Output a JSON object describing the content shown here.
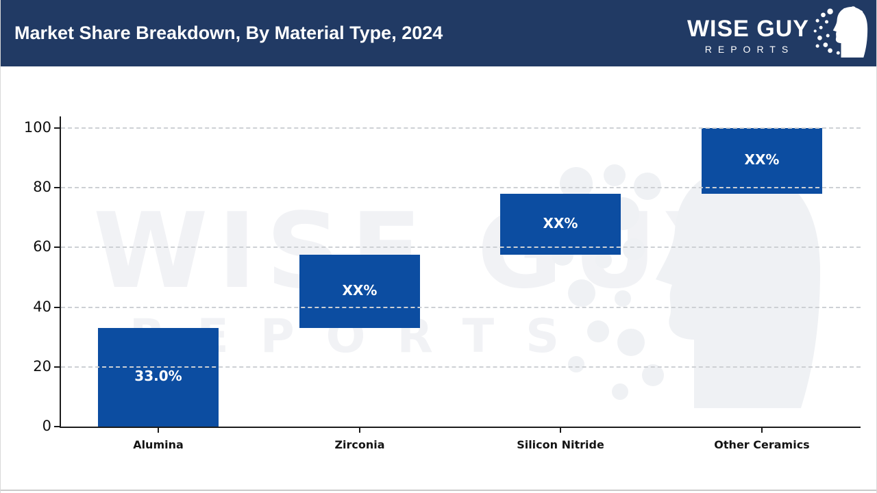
{
  "header": {
    "title": "Market Share Breakdown, By Material Type, 2024",
    "brand": {
      "name": "WISE GUY",
      "subname": "REPORTS"
    }
  },
  "watermark": {
    "line1": "WISE GUY",
    "line2": "REPORTS"
  },
  "theme": {
    "header_bg": "#213A64",
    "bar_color": "#0C4DA1",
    "grid_color": "#CDD0D4",
    "axis_color": "#1A1A1A",
    "watermark_color": "#F1F2F5"
  },
  "chart_data": {
    "type": "bar",
    "subtype": "waterfall",
    "title": "Market Share Breakdown, By Material Type, 2024",
    "categories": [
      "Alumina",
      "Zirconia",
      "Silicon Nitride",
      "Other Ceramics"
    ],
    "segments": [
      {
        "category": "Alumina",
        "start": 0,
        "end": 33,
        "label": "33.0%"
      },
      {
        "category": "Zirconia",
        "start": 33,
        "end": 57.5,
        "label": "XX%"
      },
      {
        "category": "Silicon Nitride",
        "start": 57.5,
        "end": 78,
        "label": "XX%"
      },
      {
        "category": "Other Ceramics",
        "start": 78,
        "end": 100,
        "label": "XX%"
      }
    ],
    "y_ticks": [
      0,
      20,
      40,
      60,
      80,
      100
    ],
    "ylim": [
      0,
      100
    ],
    "xlabel": "",
    "ylabel": "",
    "grid": "horizontal-dashed-over-bars",
    "legend": "none"
  }
}
